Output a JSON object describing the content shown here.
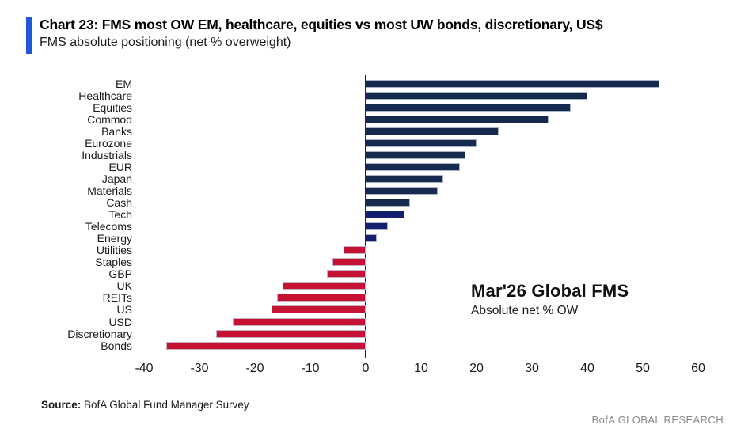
{
  "header": {
    "title": "Chart 23: FMS most OW EM, healthcare, equities vs most UW bonds, discretionary, US$",
    "subtitle": "FMS absolute positioning (net % overweight)",
    "accent_color": "#2058D8"
  },
  "chart_data": {
    "type": "bar",
    "orientation": "horizontal",
    "categories": [
      "EM",
      "Healthcare",
      "Equities",
      "Commod",
      "Banks",
      "Eurozone",
      "Industrials",
      "EUR",
      "Japan",
      "Materials",
      "Cash",
      "Tech",
      "Telecoms",
      "Energy",
      "Utilities",
      "Staples",
      "GBP",
      "UK",
      "REITs",
      "US",
      "USD",
      "Discretionary",
      "Bonds"
    ],
    "values": [
      53,
      40,
      37,
      33,
      24,
      20,
      18,
      17,
      14,
      13,
      8,
      7,
      4,
      2,
      -4,
      -6,
      -7,
      -15,
      -16,
      -17,
      -24,
      -27,
      -36
    ],
    "xlim": [
      -40,
      60
    ],
    "x_ticks": [
      -40,
      -30,
      -20,
      -10,
      0,
      10,
      20,
      30,
      40,
      50,
      60
    ],
    "grid": false,
    "legend": false,
    "annotation": {
      "line1": "Mar'26 Global FMS",
      "line2": "Absolute net % OW"
    },
    "colors": {
      "positive": "#152A4E",
      "positive_bright": "#14206E",
      "negative": "#C41233",
      "bright_categories": [
        "Tech",
        "Telecoms",
        "Energy"
      ]
    }
  },
  "footer": {
    "source_label": "Source:",
    "source_text": " BofA Global Fund Manager Survey",
    "brand": "BofA GLOBAL RESEARCH"
  }
}
